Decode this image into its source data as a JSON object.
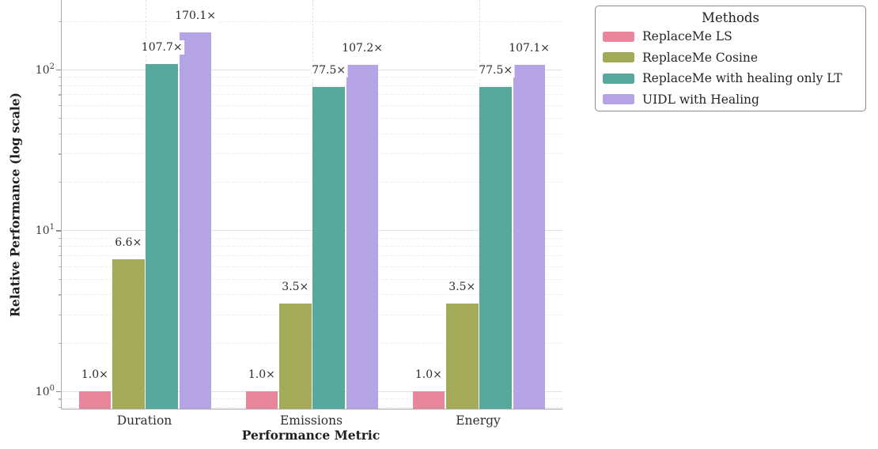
{
  "chart_data": {
    "type": "bar",
    "title": "",
    "xlabel": "Performance Metric",
    "ylabel": "Relative Performance (log scale)",
    "yscale": "log",
    "ylim": [
      0.78,
      270
    ],
    "grid": true,
    "legend": {
      "title": "Methods",
      "position": "outside-upper-right"
    },
    "categories": [
      "Duration",
      "Emissions",
      "Energy"
    ],
    "series": [
      {
        "name": "ReplaceMe LS",
        "color": "#e8879b",
        "values": [
          1.0,
          1.0,
          1.0
        ],
        "value_labels": [
          "1.0×",
          "1.0×",
          "1.0×"
        ]
      },
      {
        "name": "ReplaceMe Cosine",
        "color": "#a3ab58",
        "values": [
          6.6,
          3.5,
          3.5
        ],
        "value_labels": [
          "6.6×",
          "3.5×",
          "3.5×"
        ]
      },
      {
        "name": "ReplaceMe with healing only LT",
        "color": "#57a99e",
        "values": [
          107.7,
          77.5,
          77.5
        ],
        "value_labels": [
          "107.7×",
          "77.5×",
          "77.5×"
        ]
      },
      {
        "name": "UIDL with Healing",
        "color": "#b5a4e5",
        "values": [
          170.1,
          107.2,
          107.1
        ],
        "value_labels": [
          "170.1×",
          "107.2×",
          "107.1×"
        ]
      }
    ],
    "y_ticks": [
      {
        "value": 1,
        "base": "10",
        "exponent": "0"
      },
      {
        "value": 10,
        "base": "10",
        "exponent": "1"
      },
      {
        "value": 100,
        "base": "10",
        "exponent": "2"
      }
    ]
  }
}
